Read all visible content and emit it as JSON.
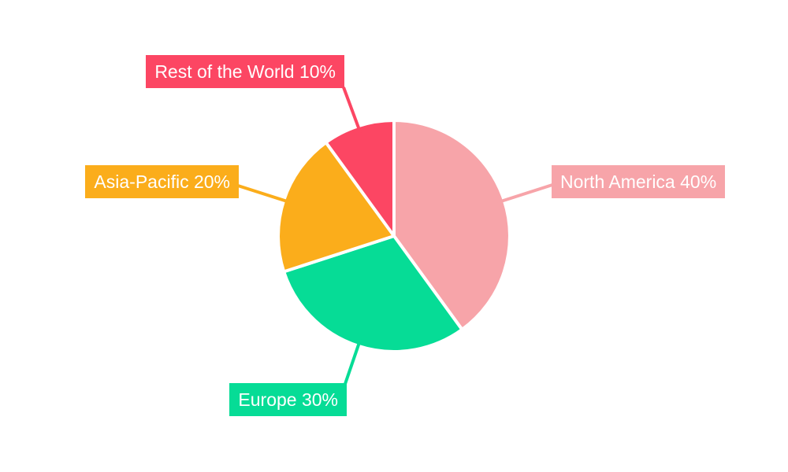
{
  "page": {
    "background_color": "#ffffff"
  },
  "chart_data": {
    "type": "pie",
    "title": "",
    "categories": [
      "North America",
      "Europe",
      "Asia-Pacific",
      "Rest of the World"
    ],
    "values": [
      40,
      30,
      20,
      10
    ],
    "unit": "%",
    "labels_display": [
      "North America 40%",
      "Europe 30%",
      "Asia-Pacific 20%",
      "Rest of the World 10%"
    ],
    "colors": [
      "#F7A4A9",
      "#06DC96",
      "#FBAD1B",
      "#FC4663"
    ],
    "slice_border_color": "#ffffff",
    "label_text_color": "#ffffff",
    "start_angle": "12 o'clock",
    "direction": "clockwise",
    "legend": "callout labels with leader lines",
    "grid": "off"
  }
}
